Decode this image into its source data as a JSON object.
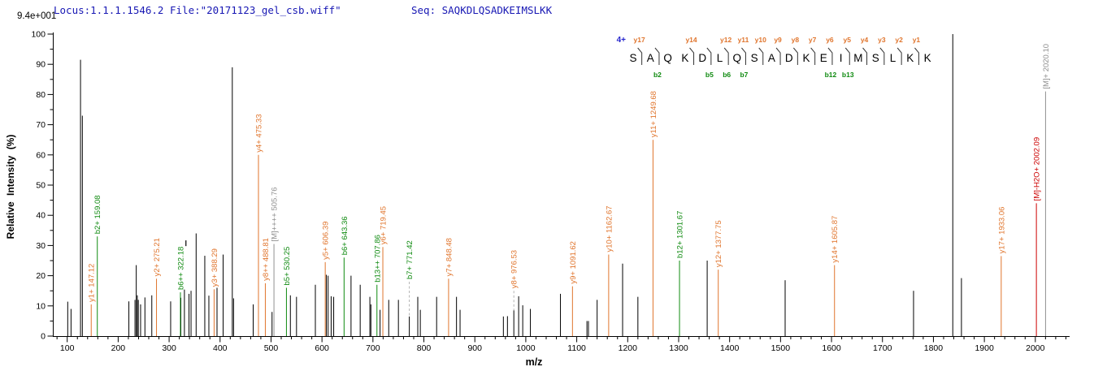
{
  "header": {
    "locus_file": "Locus:1.1.1.1546.2 File:\"20171123_gel_csb.wiff\"",
    "seq": "Seq: SAQKDLQSADKEIMSLKK",
    "base_peak_intensity": "9.4e+001"
  },
  "peptide": {
    "charge_label": "4+",
    "sequence": "SAQKDLQSADKEIMSLKK",
    "residues": [
      "S",
      "A",
      "Q",
      "K",
      "D",
      "L",
      "Q",
      "S",
      "A",
      "D",
      "K",
      "E",
      "I",
      "M",
      "S",
      "L",
      "K",
      "K"
    ],
    "boundaries": [
      {
        "after": 0,
        "y": "y17",
        "b": null
      },
      {
        "after": 1,
        "y": null,
        "b": "b2"
      },
      {
        "after": 3,
        "y": "y14",
        "b": null
      },
      {
        "after": 4,
        "y": null,
        "b": "b5"
      },
      {
        "after": 5,
        "y": "y12",
        "b": "b6"
      },
      {
        "after": 6,
        "y": "y11",
        "b": "b7"
      },
      {
        "after": 7,
        "y": "y10",
        "b": null
      },
      {
        "after": 8,
        "y": "y9",
        "b": null
      },
      {
        "after": 9,
        "y": "y8",
        "b": null
      },
      {
        "after": 10,
        "y": "y7",
        "b": null
      },
      {
        "after": 11,
        "y": "y6",
        "b": "b12"
      },
      {
        "after": 12,
        "y": "y5",
        "b": "b13"
      },
      {
        "after": 13,
        "y": "y4",
        "b": null
      },
      {
        "after": 14,
        "y": "y3",
        "b": null
      },
      {
        "after": 15,
        "y": "y2",
        "b": null
      },
      {
        "after": 16,
        "y": "y1",
        "b": null
      }
    ]
  },
  "chart_data": {
    "type": "bar",
    "subtype": "ms2-fragment-spectrum",
    "title": "",
    "xlabel": "m/z",
    "ylabel": "Relative Intensity (%)",
    "xlim": [
      72,
      2065
    ],
    "ylim": [
      0,
      100
    ],
    "grid": false,
    "x_major_ticks": [
      100,
      200,
      300,
      400,
      500,
      600,
      700,
      800,
      900,
      1000,
      1100,
      1200,
      1300,
      1400,
      1500,
      1600,
      1700,
      1800,
      1900,
      2000
    ],
    "x_minor_tick_step": 20,
    "y_major_tick_step": 10,
    "y_minor_tick_step": 5,
    "y_tick_labels": [
      0,
      10,
      20,
      30,
      40,
      50,
      60,
      70,
      80,
      90,
      100
    ],
    "annotated_peaks": [
      {
        "label": "y1+ 147.12",
        "ion": "y1+",
        "mz": 147.12,
        "intensity": 10.5,
        "series": "y"
      },
      {
        "label": "b2+ 159.08",
        "ion": "b2+",
        "mz": 159.08,
        "intensity": 33,
        "series": "b"
      },
      {
        "label": "y2+ 275.21",
        "ion": "y2+",
        "mz": 275.21,
        "intensity": 19,
        "series": "y"
      },
      {
        "label": "b6++ 322.18",
        "ion": "b6++",
        "mz": 322.18,
        "intensity": 14.5,
        "series": "b"
      },
      {
        "label": "y3+ 388.29",
        "ion": "y3+",
        "mz": 388.29,
        "intensity": 15.5,
        "series": "y"
      },
      {
        "label": "y4+ 475.33",
        "ion": "y4+",
        "mz": 475.33,
        "intensity": 60,
        "series": "y"
      },
      {
        "label": "y8++ 488.81",
        "ion": "y8++",
        "mz": 488.81,
        "intensity": 17.5,
        "series": "y"
      },
      {
        "label": "[M]++++ 505.76",
        "ion": "[M]++++",
        "mz": 505.76,
        "intensity": 30.5,
        "series": "M"
      },
      {
        "label": "b5+ 530.25",
        "ion": "b5+",
        "mz": 530.25,
        "intensity": 16,
        "series": "b"
      },
      {
        "label": "y5+ 606.39",
        "ion": "y5+",
        "mz": 606.39,
        "intensity": 24.5,
        "series": "y"
      },
      {
        "label": "b6+ 643.36",
        "ion": "b6+",
        "mz": 643.36,
        "intensity": 26,
        "series": "b"
      },
      {
        "label": "b13++ 707.86",
        "ion": "b13++",
        "mz": 707.86,
        "intensity": 17,
        "series": "b"
      },
      {
        "label": "y6+ 719.45",
        "ion": "y6+",
        "mz": 719.45,
        "intensity": 29.5,
        "series": "y"
      },
      {
        "label": "b7+ 771.42",
        "ion": "b7+",
        "mz": 771.42,
        "intensity": 18,
        "series": "b",
        "dashed": true,
        "stub_intensity": 6.5
      },
      {
        "label": "y7+ 848.48",
        "ion": "y7+",
        "mz": 848.48,
        "intensity": 19,
        "series": "y"
      },
      {
        "label": "y8+ 976.53",
        "ion": "y8+",
        "mz": 976.53,
        "intensity": 15,
        "series": "y",
        "dashed": true,
        "stub_intensity": 8.5
      },
      {
        "label": "y9+ 1091.62",
        "ion": "y9+",
        "mz": 1091.62,
        "intensity": 16.5,
        "series": "y"
      },
      {
        "label": "y10+ 1162.67",
        "ion": "y10+",
        "mz": 1162.67,
        "intensity": 27,
        "series": "y"
      },
      {
        "label": "y11+ 1249.68",
        "ion": "y11+",
        "mz": 1249.68,
        "intensity": 65,
        "series": "y"
      },
      {
        "label": "b12+ 1301.67",
        "ion": "b12+",
        "mz": 1301.67,
        "intensity": 25,
        "series": "b"
      },
      {
        "label": "y12+ 1377.75",
        "ion": "y12+",
        "mz": 1377.75,
        "intensity": 22,
        "series": "y"
      },
      {
        "label": "y14+ 1605.87",
        "ion": "y14+",
        "mz": 1605.87,
        "intensity": 23.5,
        "series": "y"
      },
      {
        "label": "y17+ 1933.06",
        "ion": "y17+",
        "mz": 1933.06,
        "intensity": 26.5,
        "series": "y"
      },
      {
        "label": "[M]-H2O+ 2002.09",
        "ion": "[M]-H2O+",
        "mz": 2002.09,
        "intensity": 44,
        "series": "M-H2O"
      },
      {
        "label": "[M]+ 2020.10",
        "ion": "[M]+",
        "mz": 2020.1,
        "intensity": 81,
        "series": "M"
      }
    ],
    "unannotated_peaks": [
      [
        101,
        11.4
      ],
      [
        107.5,
        9
      ],
      [
        126.1,
        91.5
      ],
      [
        129.7,
        73
      ],
      [
        221,
        11.5
      ],
      [
        233,
        12
      ],
      [
        235.5,
        23.5
      ],
      [
        237.5,
        13.5
      ],
      [
        239.5,
        12
      ],
      [
        244,
        10.5
      ],
      [
        252.5,
        12.8
      ],
      [
        266,
        13.5
      ],
      [
        303,
        11.5
      ],
      [
        323,
        12.7
      ],
      [
        330,
        15.4
      ],
      [
        339,
        14
      ],
      [
        343,
        15
      ],
      [
        353,
        34
      ],
      [
        370,
        26.6
      ],
      [
        378,
        13.4
      ],
      [
        394,
        16
      ],
      [
        406,
        27
      ],
      [
        424,
        89
      ],
      [
        426.5,
        12.5
      ],
      [
        465,
        10.5
      ],
      [
        502,
        8
      ],
      [
        538,
        13.5
      ],
      [
        550,
        13
      ],
      [
        587,
        17
      ],
      [
        608.5,
        20.3
      ],
      [
        612,
        20
      ],
      [
        618,
        13.2
      ],
      [
        623,
        13
      ],
      [
        657,
        20
      ],
      [
        675,
        17
      ],
      [
        694,
        13
      ],
      [
        696,
        10.5
      ],
      [
        714,
        8.7
      ],
      [
        731,
        12
      ],
      [
        750,
        12
      ],
      [
        788,
        13
      ],
      [
        793,
        8.7
      ],
      [
        825,
        13
      ],
      [
        864,
        13
      ],
      [
        871,
        8.7
      ],
      [
        956,
        6.5
      ],
      [
        964,
        6.6
      ],
      [
        986,
        13.2
      ],
      [
        994,
        10.2
      ],
      [
        1009,
        9
      ],
      [
        1068,
        14
      ],
      [
        1120,
        5
      ],
      [
        1123,
        5
      ],
      [
        1140,
        12
      ],
      [
        1190,
        24
      ],
      [
        1220,
        13
      ],
      [
        1356,
        25
      ],
      [
        1509,
        18.5
      ],
      [
        1761,
        15
      ],
      [
        1838,
        100
      ],
      [
        1855,
        19.2
      ]
    ],
    "artifact_mark": {
      "mz": 333,
      "from_pct": 29.8,
      "to_pct": 31.7
    },
    "legend_position": "none"
  },
  "colors": {
    "y_ion": "#e0752d",
    "b_ion": "#0f8a10",
    "precursor": "#909090",
    "precursor_loss": "#cc0000",
    "peak": "#000000",
    "axis": "#000000",
    "header_text": "#1818b4",
    "charge": "#2424cc"
  }
}
